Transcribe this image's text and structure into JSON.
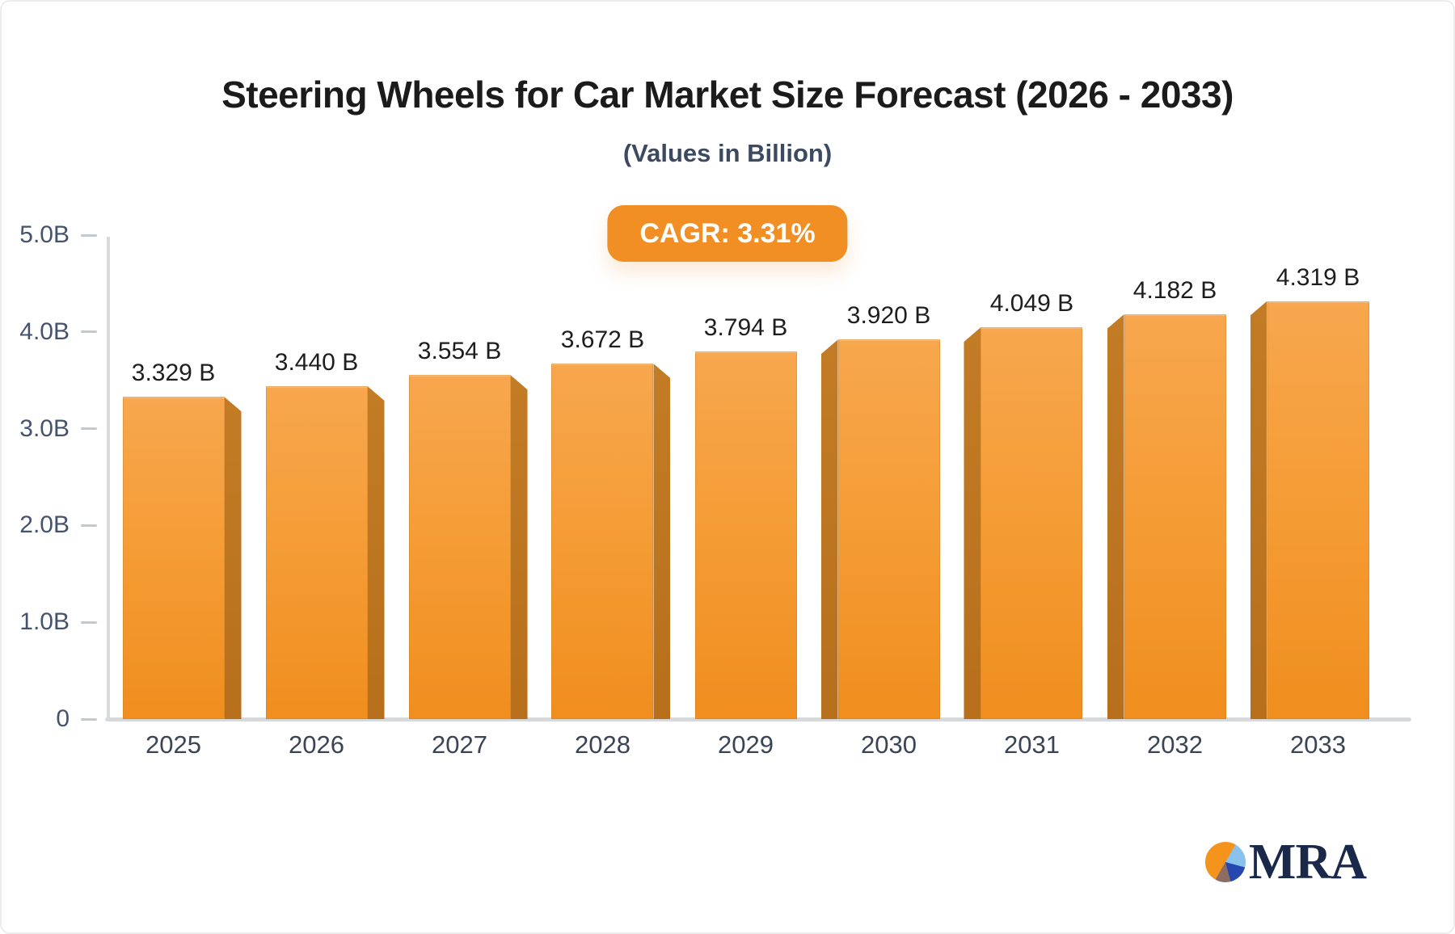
{
  "header": {
    "title": "Steering Wheels for Car Market Size Forecast (2026 - 2033)",
    "subtitle": "(Values in Billion)",
    "cagr_label": "CAGR: 3.31%"
  },
  "chart_data": {
    "type": "bar",
    "title": "Steering Wheels for Car Market Size Forecast (2026 - 2033)",
    "subtitle": "(Values in Billion)",
    "cagr_pct": 3.31,
    "categories": [
      "2025",
      "2026",
      "2027",
      "2028",
      "2029",
      "2030",
      "2031",
      "2032",
      "2033"
    ],
    "values": [
      3.329,
      3.44,
      3.554,
      3.672,
      3.794,
      3.92,
      4.049,
      4.182,
      4.319
    ],
    "value_labels": [
      "3.329 B",
      "3.440 B",
      "3.554 B",
      "3.672 B",
      "3.794 B",
      "3.920 B",
      "4.049 B",
      "4.182 B",
      "4.319 B"
    ],
    "unit": "Billion",
    "xlabel": "",
    "ylabel": "",
    "ylim": [
      0,
      5
    ],
    "yticks": [
      {
        "label": "5.0B",
        "value": 5.0
      },
      {
        "label": "4.0B",
        "value": 4.0
      },
      {
        "label": "3.0B",
        "value": 3.0
      },
      {
        "label": "2.0B",
        "value": 2.0
      },
      {
        "label": "1.0B",
        "value": 1.0
      },
      {
        "label": "0",
        "value": 0.0
      }
    ],
    "grid": false,
    "legend": false,
    "bar_style": "3d-flap",
    "flap_side_rule": "right for 2025-2028, none for 2029, left for 2030-2033"
  },
  "colors": {
    "accent": "#f18f25",
    "title_color": "#1b1b1b",
    "subtitle_color": "#3c4a61",
    "bar_top": "#f7a74e",
    "bar_mid": "#f59d37",
    "bar_bottom": "#f08e1e",
    "bar_side": "#c37c25",
    "bar_side_dark": "#b76f1c",
    "axis_line": "#d8d9db",
    "tick_color": "#c3c9d2",
    "ylabel_color": "#46536d",
    "xlabel_color": "#3b4454",
    "value_color": "#1e1e1e",
    "logo_navy": "#1a2849",
    "pie_orange": "#f5941d",
    "pie_lightblue": "#8ac2ee",
    "pie_darkblue": "#2547b0",
    "pie_brown": "#8d6d62"
  },
  "logo": {
    "text": "MRA"
  }
}
